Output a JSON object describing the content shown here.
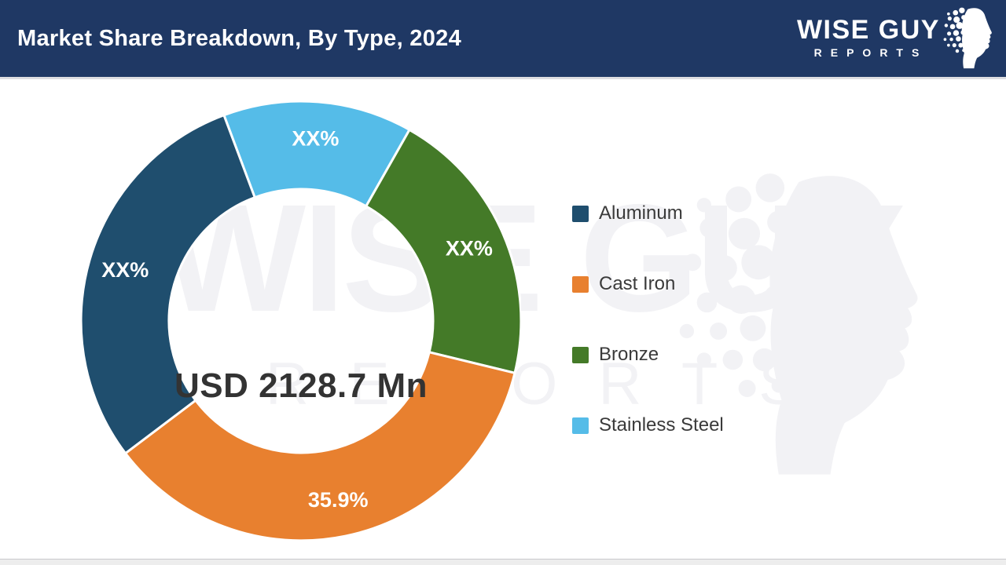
{
  "header": {
    "title": "Market Share Breakdown, By Type, 2024",
    "logo": {
      "line1": "WISE GUY",
      "line2": "REPORTS"
    }
  },
  "watermark": {
    "line1": "WISE GUY",
    "line2": "REPORTS"
  },
  "chart_data": {
    "type": "pie",
    "subtype": "donut",
    "title": "Market Share Breakdown, By Type, 2024",
    "center_label": "USD 2128.7 Mn",
    "start_angle_deg_clockwise_from_12": -20.5,
    "hole_ratio": 0.6,
    "segments_clockwise": [
      {
        "name": "Stainless Steel",
        "label": "XX%",
        "pct": 13.9,
        "color": "#55BCE8"
      },
      {
        "name": "Bronze",
        "label": "XX%",
        "pct": 20.6,
        "color": "#447A28"
      },
      {
        "name": "Cast Iron",
        "label": "35.9%",
        "pct": 35.9,
        "color": "#E8802F"
      },
      {
        "name": "Aluminum",
        "label": "XX%",
        "pct": 29.6,
        "color": "#1F4E6E"
      }
    ],
    "legend": {
      "position": "right",
      "items": [
        {
          "label": "Aluminum",
          "color": "#1F4E6E"
        },
        {
          "label": "Cast Iron",
          "color": "#E8802F"
        },
        {
          "label": "Bronze",
          "color": "#447A28"
        },
        {
          "label": "Stainless Steel",
          "color": "#55BCE8"
        }
      ]
    }
  },
  "colors": {
    "header_bg": "#1F3864",
    "title_text": "#FFFFFF",
    "center_text": "#333333",
    "legend_text": "#3A3A3A",
    "segment_label_text": "#FFFFFF",
    "watermark": "#F2F2F5"
  }
}
